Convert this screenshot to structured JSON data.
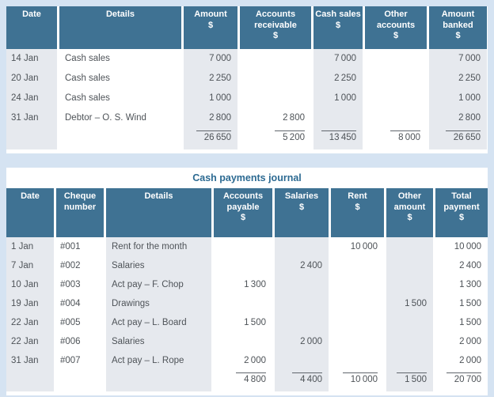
{
  "colors": {
    "page_bg": "#d5e3f2",
    "header_bg": "#3f7293",
    "shade": "#e6e9ee",
    "text": "#4e5358",
    "title_text": "#2c6a92",
    "total_line": "#60656c"
  },
  "top_journal": {
    "columns": [
      {
        "label": "Date",
        "unit": ""
      },
      {
        "label": "Details",
        "unit": ""
      },
      {
        "label": "Amount",
        "unit": "$"
      },
      {
        "label": "Accounts receivable",
        "unit": "$"
      },
      {
        "label": "Cash sales",
        "unit": "$"
      },
      {
        "label": "Other accounts",
        "unit": "$"
      },
      {
        "label": "Amount banked",
        "unit": "$"
      }
    ],
    "rows": [
      [
        "14 Jan",
        "Cash sales",
        "7 000",
        "",
        "7 000",
        "",
        "7 000"
      ],
      [
        "20 Jan",
        "Cash sales",
        "2 250",
        "",
        "2 250",
        "",
        "2 250"
      ],
      [
        "24 Jan",
        "Cash sales",
        "1 000",
        "",
        "1 000",
        "",
        "1 000"
      ],
      [
        "31 Jan",
        "Debtor – O. S. Wind",
        "2 800",
        "2 800",
        "",
        "",
        "2 800"
      ]
    ],
    "totals": [
      "",
      "",
      "26 650",
      "5 200",
      "13 450",
      "8 000",
      "26 650"
    ]
  },
  "payments_journal": {
    "title": "Cash payments journal",
    "columns": [
      {
        "label": "Date",
        "unit": ""
      },
      {
        "label": "Cheque number",
        "unit": ""
      },
      {
        "label": "Details",
        "unit": ""
      },
      {
        "label": "Accounts payable",
        "unit": "$"
      },
      {
        "label": "Salaries",
        "unit": "$"
      },
      {
        "label": "Rent",
        "unit": "$"
      },
      {
        "label": "Other amount",
        "unit": "$"
      },
      {
        "label": "Total payment",
        "unit": "$"
      }
    ],
    "rows": [
      [
        "1 Jan",
        "#001",
        "Rent for the month",
        "",
        "",
        "10 000",
        "",
        "10 000"
      ],
      [
        "7 Jan",
        "#002",
        "Salaries",
        "",
        "2 400",
        "",
        "",
        "2 400"
      ],
      [
        "10 Jan",
        "#003",
        "Act pay – F. Chop",
        "1 300",
        "",
        "",
        "",
        "1 300"
      ],
      [
        "19 Jan",
        "#004",
        "Drawings",
        "",
        "",
        "",
        "1 500",
        "1 500"
      ],
      [
        "22 Jan",
        "#005",
        "Act pay – L. Board",
        "1 500",
        "",
        "",
        "",
        "1 500"
      ],
      [
        "22 Jan",
        "#006",
        "Salaries",
        "",
        "2 000",
        "",
        "",
        "2 000"
      ],
      [
        "31 Jan",
        "#007",
        "Act pay – L. Rope",
        "2 000",
        "",
        "",
        "",
        "2 000"
      ]
    ],
    "totals": [
      "",
      "",
      "",
      "4 800",
      "4 400",
      "10 000",
      "1 500",
      "20 700"
    ]
  }
}
